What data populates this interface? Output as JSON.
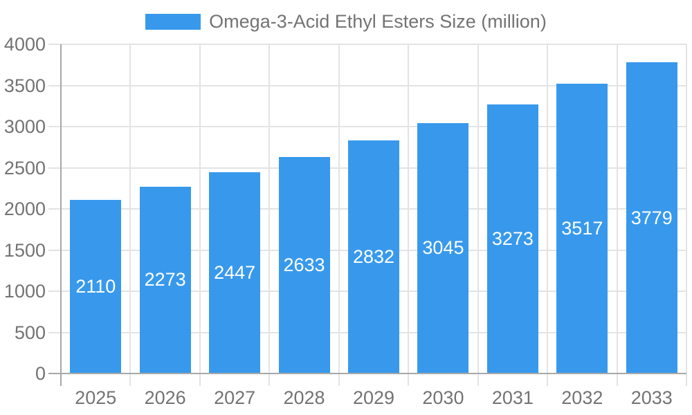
{
  "chart_data": {
    "type": "bar",
    "legend": "Omega-3-Acid Ethyl Esters Size (million)",
    "legend_position": "top",
    "categories": [
      "2025",
      "2026",
      "2027",
      "2028",
      "2029",
      "2030",
      "2031",
      "2032",
      "2033"
    ],
    "values": [
      2110,
      2273,
      2447,
      2633,
      2832,
      3045,
      3273,
      3517,
      3779
    ],
    "bar_value_labels": [
      "2110",
      "2273",
      "2447",
      "2633",
      "2832",
      "3045",
      "3273",
      "3517",
      "3779"
    ],
    "xlabel": "",
    "ylabel": "",
    "ylim": [
      0,
      4000
    ],
    "ytick_step": 500,
    "yticks": [
      0,
      500,
      1000,
      1500,
      2000,
      2500,
      3000,
      3500,
      4000
    ],
    "grid": true,
    "colors": {
      "bar": "#3899EC",
      "grid": "#E3E3E3",
      "axis_line": "#A8A8A8",
      "axis_text": "#737373",
      "value_label": "#FFFFFF",
      "background": "#FFFFFF"
    }
  }
}
